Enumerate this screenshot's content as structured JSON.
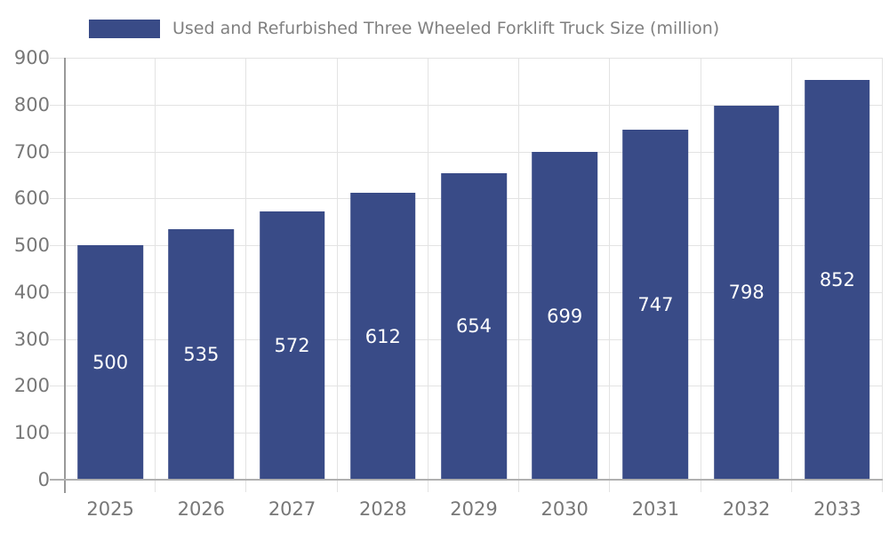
{
  "chart_data": {
    "type": "bar",
    "title": "Used and Refurbished Three Wheeled Forklift Truck Size (million)",
    "categories": [
      "2025",
      "2026",
      "2027",
      "2028",
      "2029",
      "2030",
      "2031",
      "2032",
      "2033"
    ],
    "values": [
      500,
      535,
      572,
      612,
      654,
      699,
      747,
      798,
      852
    ],
    "xlabel": "",
    "ylabel": "",
    "ylim": [
      0,
      900
    ],
    "y_ticks": [
      0,
      100,
      200,
      300,
      400,
      500,
      600,
      700,
      800,
      900
    ],
    "grid": true,
    "legend_position": "top",
    "bar_labels_inside": true,
    "colors": {
      "bar": "#394B87",
      "bar_value_text": "#FFFFFF",
      "gridline": "#E3E3E3",
      "y_axis_line": "#999999",
      "baseline": "#B0B0B0",
      "tick_text": "#777777",
      "legend_text": "#808080",
      "background": "#FFFFFF"
    }
  }
}
